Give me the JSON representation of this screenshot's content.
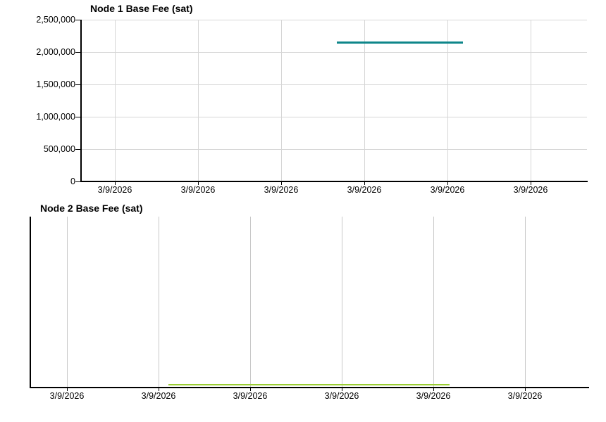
{
  "colors": {
    "background": "#ffffff",
    "axis": "#000000",
    "grid_chart1": "#d6d6d6",
    "grid_chart2": "#c8c8c8",
    "node1_line": "#0e868a",
    "node2_line": "#9acd32",
    "text": "#000000"
  },
  "chart_data": [
    {
      "type": "line",
      "title": "Node 1 Base Fee (sat)",
      "xlabel": "",
      "ylabel": "",
      "x_tick_labels": [
        "3/9/2026",
        "3/9/2026",
        "3/9/2026",
        "3/9/2026",
        "3/9/2026",
        "3/9/2026"
      ],
      "y_tick_labels": [
        "0",
        "500,000",
        "1,000,000",
        "1,500,000",
        "2,000,000",
        "2,500,000"
      ],
      "y_ticks": [
        0,
        500000,
        1000000,
        1500000,
        2000000,
        2500000
      ],
      "ylim": [
        0,
        2500000
      ],
      "grid": {
        "horizontal": true,
        "vertical": true
      },
      "legend": "none",
      "x_units": "x-tick index (0-based); all six ticks are labeled 3/9/2026 (intraday times on one date)",
      "series": [
        {
          "name": "Node 1 Base Fee",
          "color": "#0e868a",
          "points": [
            {
              "x": 2.67,
              "y": 2150000
            },
            {
              "x": 4.19,
              "y": 2150000
            }
          ],
          "shape": "horizontal segment, constant value ~2,150,000 sat from shortly after 4th tick to just past 5th tick"
        }
      ]
    },
    {
      "type": "line",
      "title": "Node 2 Base Fee (sat)",
      "xlabel": "",
      "ylabel": "",
      "x_tick_labels": [
        "3/9/2026",
        "3/9/2026",
        "3/9/2026",
        "3/9/2026",
        "3/9/2026",
        "3/9/2026"
      ],
      "y_tick_labels": [],
      "y_ticks": [],
      "ylim": [
        0,
        1
      ],
      "y_axis": "unlabeled (no tick labels, no horizontal gridlines)",
      "grid": {
        "horizontal": false,
        "vertical": true
      },
      "legend": "none",
      "x_units": "x-tick index (0-based); all six ticks are labeled 3/9/2026",
      "series": [
        {
          "name": "Node 2 Base Fee",
          "color": "#9acd32",
          "points": [
            {
              "x": 1.11,
              "y": 0.017
            },
            {
              "x": 4.18,
              "y": 0.017
            }
          ],
          "shape": "horizontal segment hugging the x-axis (value just above 0) from just past 2nd tick to just past 5th tick"
        }
      ]
    }
  ]
}
